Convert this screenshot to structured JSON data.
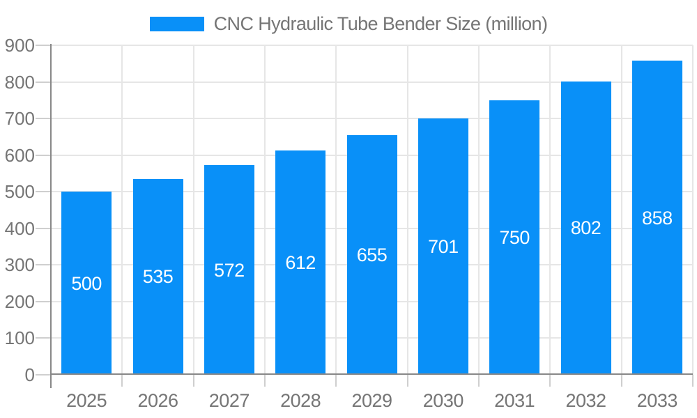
{
  "chart_data": {
    "type": "bar",
    "title": "CNC Hydraulic Tube Bender Size (million)",
    "legend": {
      "label": "CNC Hydraulic Tube Bender Size (million)",
      "position": "top-center"
    },
    "categories": [
      "2025",
      "2026",
      "2027",
      "2028",
      "2029",
      "2030",
      "2031",
      "2032",
      "2033"
    ],
    "values": [
      500,
      535,
      572,
      612,
      655,
      701,
      750,
      802,
      858
    ],
    "bar_value_labels": [
      "500",
      "535",
      "572",
      "612",
      "655",
      "701",
      "750",
      "802",
      "858"
    ],
    "xlabel": "",
    "ylabel": "",
    "ylim": [
      0,
      900
    ],
    "ytick_step": 100,
    "yticks": [
      0,
      100,
      200,
      300,
      400,
      500,
      600,
      700,
      800,
      900
    ],
    "grid": "horizontal and vertical light gray gridlines, bars drawn on top",
    "value_label_position": "centered inside bar, white text",
    "colors": {
      "bar": "#0990F8",
      "axis_text": "#757575",
      "bar_label": "#FFFFFF",
      "grid_line": "#E6E6E6",
      "tick_mark": "#CFCFCF",
      "axis_line": "#888888",
      "background": "#FFFFFF"
    }
  }
}
